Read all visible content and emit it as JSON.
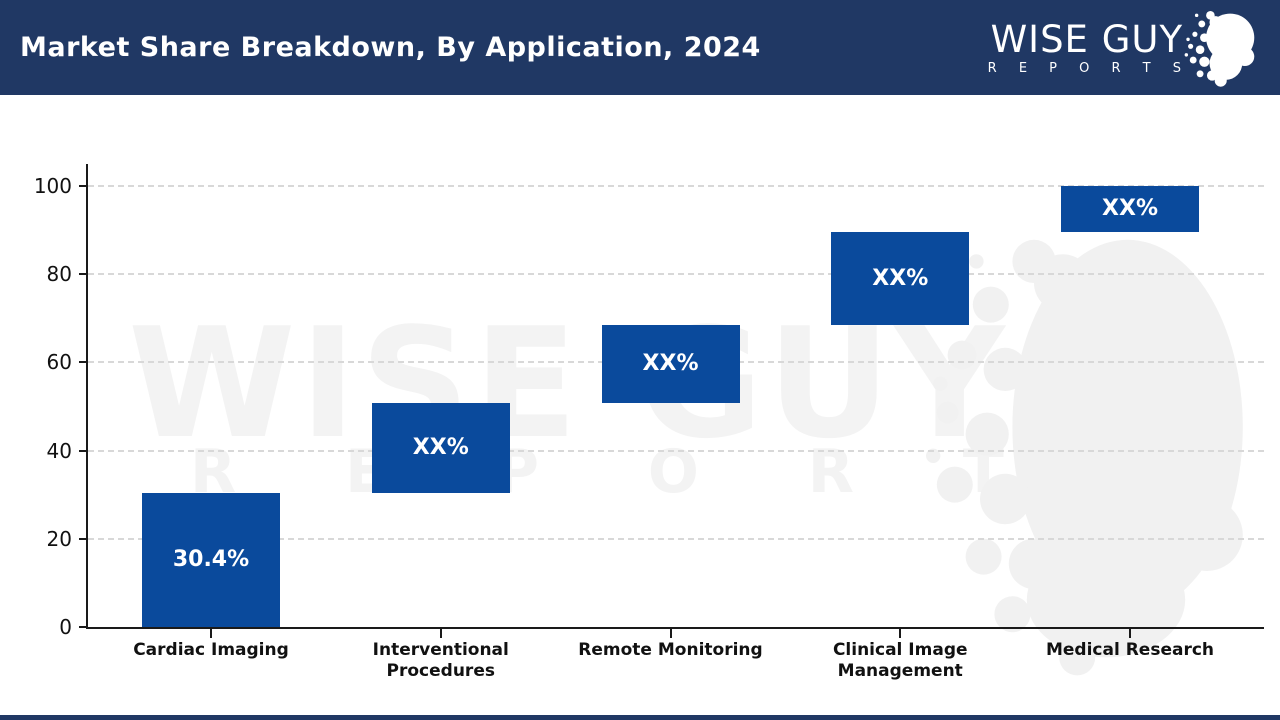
{
  "header": {
    "title": "Market Share Breakdown, By Application, 2024",
    "logo": {
      "line1": "WISE GUY",
      "line2": "R E P O R T S"
    }
  },
  "watermark": {
    "line1": "WISE GUY",
    "line2": "R E P O R T S"
  },
  "colors": {
    "header_navy": "#203864",
    "bar_blue": "#0a4a9c",
    "grid_gray": "#d8d8d8",
    "watermark_gray": "#f3f3f3",
    "axis_black": "#1a1a1a",
    "bar_label_white": "#ffffff"
  },
  "chart_data": {
    "type": "bar",
    "subtype": "floating-waterfall",
    "title": "Market Share Breakdown, By Application, 2024",
    "categories": [
      "Cardiac Imaging",
      "Interventional Procedures",
      "Remote Monitoring",
      "Clinical Image Management",
      "Medical Research"
    ],
    "segments": [
      {
        "category": "Cardiac Imaging",
        "start": 0,
        "end": 30.4,
        "label": "30.4%"
      },
      {
        "category": "Interventional Procedures",
        "start": 30.4,
        "end": 50.9,
        "label": "XX%"
      },
      {
        "category": "Remote Monitoring",
        "start": 50.9,
        "end": 68.5,
        "label": "XX%"
      },
      {
        "category": "Clinical Image Management",
        "start": 68.5,
        "end": 89.6,
        "label": "XX%"
      },
      {
        "category": "Medical Research",
        "start": 89.6,
        "end": 100,
        "label": "XX%"
      }
    ],
    "xlabel": "",
    "ylabel": "",
    "ylim": [
      0,
      105
    ],
    "yticks": [
      0,
      20,
      40,
      60,
      80,
      100
    ],
    "gridlines": {
      "values": [
        20,
        40,
        60,
        80,
        100
      ],
      "style": "dashed",
      "orientation": "horizontal"
    },
    "legend": "none",
    "bar_color": "#0a4a9c"
  }
}
